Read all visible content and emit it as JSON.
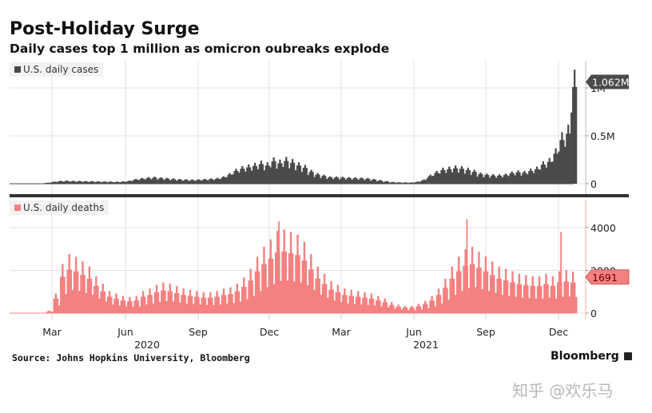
{
  "header": {
    "title": "Post-Holiday Surge",
    "subtitle": "Daily cases top 1 million as omicron oubreaks explode"
  },
  "footer": {
    "source": "Source: Johns Hopkins University, Bloomberg",
    "brand": "Bloomberg",
    "watermark": "知乎 @欢乐马"
  },
  "colors": {
    "cases": "#4a4a4a",
    "deaths": "#f58080",
    "divider": "#333333",
    "grid": "#e2e2e2"
  },
  "chart_data": [
    {
      "type": "bar",
      "title": "U.S. daily cases",
      "legend": "U.S. daily cases",
      "legend_position": "top-left",
      "ylabel": "",
      "ylim": [
        0,
        1150000
      ],
      "yticks": [
        {
          "value": 0,
          "label": "0"
        },
        {
          "value": 500000,
          "label": "0.5M"
        },
        {
          "value": 1000000,
          "label": "1M"
        }
      ],
      "callout": {
        "value": 1062000,
        "label": "1.062M"
      },
      "x_start": "2020-01-22",
      "x_end": "2022-01-03",
      "interval_days": 7,
      "values": [
        0,
        0,
        0,
        0,
        0,
        0,
        10000,
        20000,
        28000,
        30000,
        28000,
        27000,
        25000,
        25000,
        23000,
        22000,
        21000,
        20000,
        22000,
        30000,
        45000,
        55000,
        62000,
        66000,
        60000,
        55000,
        50000,
        45000,
        42000,
        40000,
        42000,
        46000,
        50000,
        55000,
        70000,
        100000,
        140000,
        165000,
        180000,
        195000,
        215000,
        200000,
        245000,
        225000,
        250000,
        230000,
        200000,
        175000,
        130000,
        100000,
        85000,
        70000,
        68000,
        65000,
        62000,
        60000,
        58000,
        54000,
        45000,
        35000,
        25000,
        17000,
        14000,
        13000,
        13000,
        20000,
        40000,
        85000,
        120000,
        150000,
        160000,
        170000,
        165000,
        150000,
        130000,
        105000,
        95000,
        90000,
        88000,
        95000,
        115000,
        125000,
        120000,
        140000,
        160000,
        210000,
        240000,
        330000,
        480000,
        550000,
        1062000
      ],
      "spikes": [
        {
          "index": 89,
          "value": 590000
        }
      ]
    },
    {
      "type": "bar",
      "title": "U.S. daily deaths",
      "legend": "U.S. daily deaths",
      "legend_position": "top-left",
      "ylabel": "",
      "ylim": [
        0,
        4500
      ],
      "yticks": [
        {
          "value": 0,
          "label": "0"
        },
        {
          "value": 2000,
          "label": "2000"
        },
        {
          "value": 4000,
          "label": "4000"
        }
      ],
      "callout": {
        "value": 1691,
        "label": "1691"
      },
      "x_start": "2020-01-22",
      "x_end": "2022-01-03",
      "interval_days": 7,
      "values": [
        0,
        0,
        0,
        0,
        0,
        0,
        100,
        800,
        2000,
        2400,
        2300,
        2100,
        1900,
        1500,
        1200,
        900,
        800,
        700,
        650,
        700,
        900,
        1000,
        1150,
        1250,
        1200,
        1100,
        1000,
        950,
        900,
        850,
        850,
        900,
        1000,
        1050,
        1200,
        1450,
        1800,
        2300,
        2700,
        3000,
        3350,
        3400,
        3300,
        3200,
        2900,
        2400,
        1900,
        1600,
        1300,
        1150,
        1000,
        950,
        900,
        850,
        800,
        700,
        600,
        450,
        350,
        300,
        300,
        380,
        500,
        700,
        1000,
        1400,
        1900,
        2300,
        2600,
        2700,
        2500,
        2300,
        2100,
        1900,
        1800,
        1700,
        1600,
        1550,
        1500,
        1500,
        1600,
        1500,
        1700,
        1750,
        1691
      ],
      "spikes": [
        {
          "index": 68,
          "value": 4400
        },
        {
          "index": 82,
          "value": 3800
        },
        {
          "index": 40,
          "value": 4300
        }
      ]
    }
  ],
  "x_axis": {
    "ticks": [
      "Mar",
      "Jun",
      "Sep",
      "Dec",
      "Mar",
      "Jun",
      "Sep",
      "Dec"
    ],
    "years": [
      "2020",
      "2021"
    ]
  }
}
